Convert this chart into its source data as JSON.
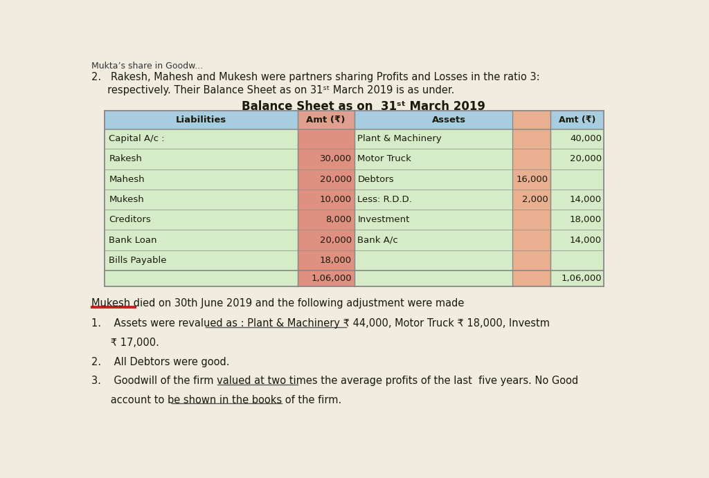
{
  "title_line0": "Mukta’s share in Goodw...",
  "title_line1": "2.   Rakesh, Mahesh and Mukesh were partners sharing Profits and Losses in the ratio 3:",
  "title_line2": "     respectively. Their Balance Sheet as on 31ˢᵗ March 2019 is as under.",
  "table_title": "Balance Sheet as on  31ˢᵗ March 2019",
  "header_liabilities": "Liabilities",
  "header_amt_left": "Amt (₹)",
  "header_assets": "Assets",
  "header_amt_right": "Amt (₹)",
  "liabilities": [
    "Capital A/c :",
    "Rakesh",
    "Mahesh",
    "Mukesh",
    "Creditors",
    "Bank Loan",
    "Bills Payable"
  ],
  "liabilities_amounts": [
    "",
    "30,000",
    "20,000",
    "10,000",
    "8,000",
    "20,000",
    "18,000"
  ],
  "liabilities_total": "1,06,000",
  "assets": [
    "Plant & Machinery",
    "Motor Truck",
    "Debtors",
    "Less: R.D.D.",
    "Investment",
    "Bank A/c",
    ""
  ],
  "assets_sub_amounts": [
    "",
    "",
    "16,000",
    "2,000",
    "",
    "",
    ""
  ],
  "assets_amounts": [
    "40,000",
    "20,000",
    "",
    "14,000",
    "18,000",
    "14,000",
    ""
  ],
  "assets_total": "1,06,000",
  "below_text_line1": "Mukesh died on 30th June 2019 and the following adjustment were made",
  "below_text_1": "1.    Assets were revalued as : Plant & Machinery ₹ 44,000, Motor Truck ₹ 18,000, Investm",
  "below_text_1b": "      ₹ 17,000.",
  "below_text_2": "2.    All Debtors were good.",
  "below_text_3": "3.    Goodwill of the firm valued at two times the average profits of the last  five years. No Good",
  "below_text_3b": "      account to be shown in the books of the firm.",
  "bg_color": "#f0ece0",
  "table_bg_left": "#d6ecc8",
  "table_bg_amt_left": "#e09080",
  "table_bg_right": "#d6ecc8",
  "table_bg_amt_right": "#e8b090",
  "header_bg_left": "#a8cce0",
  "header_bg_amt_left": "#e0a090",
  "header_bg_right": "#a8cce0",
  "header_bg_amt_right": "#e8b090",
  "border_color": "#888888",
  "text_color": "#1a1a0a",
  "font_size_title": 10.5,
  "font_size_table": 9.5,
  "font_size_below": 10.5
}
